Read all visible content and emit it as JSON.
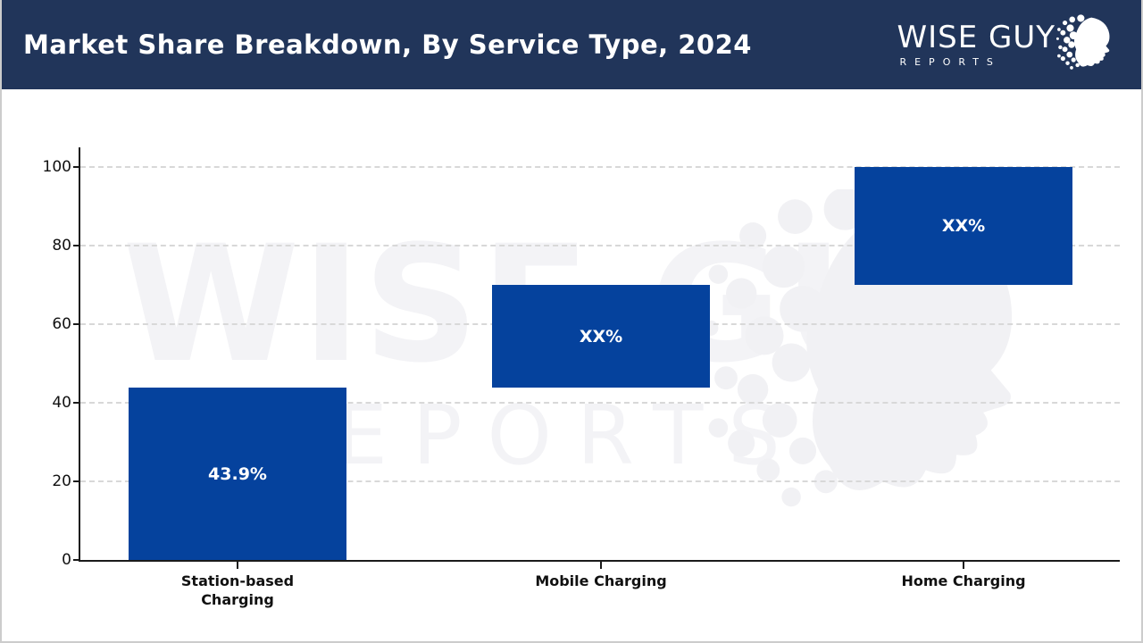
{
  "header": {
    "title": "Market Share Breakdown, By Service Type, 2024",
    "logo": {
      "line1": "WISE GUY",
      "line2": "REPORTS"
    }
  },
  "watermark": {
    "line1": "WISE GUY",
    "line2": "REPORTS"
  },
  "chart_data": {
    "type": "bar",
    "subtype": "waterfall",
    "title": "Market Share Breakdown, By Service Type, 2024",
    "categories": [
      "Station-based Charging",
      "Mobile Charging",
      "Home Charging"
    ],
    "series": [
      {
        "name": "Market share (%)",
        "segments": [
          {
            "category": "Station-based Charging",
            "start": 0,
            "end": 43.9,
            "label": "43.9%"
          },
          {
            "category": "Mobile Charging",
            "start": 43.9,
            "end": 70,
            "label": "XX%"
          },
          {
            "category": "Home Charging",
            "start": 70,
            "end": 100,
            "label": "XX%"
          }
        ]
      }
    ],
    "xlabel": "",
    "ylabel": "",
    "ylim": [
      0,
      100
    ],
    "yticks": [
      0,
      20,
      40,
      60,
      80,
      100
    ],
    "grid": "horizontal-dashed",
    "legend": "none",
    "bar_color": "#05429d",
    "bar_label_color": "#ffffff"
  },
  "colors": {
    "header_bg": "#21355a",
    "bar": "#05429d",
    "grid": "#d8d8d8",
    "axis": "#1a1a1a",
    "watermark": "#f3f3f6",
    "page_border": "#cccccc"
  }
}
